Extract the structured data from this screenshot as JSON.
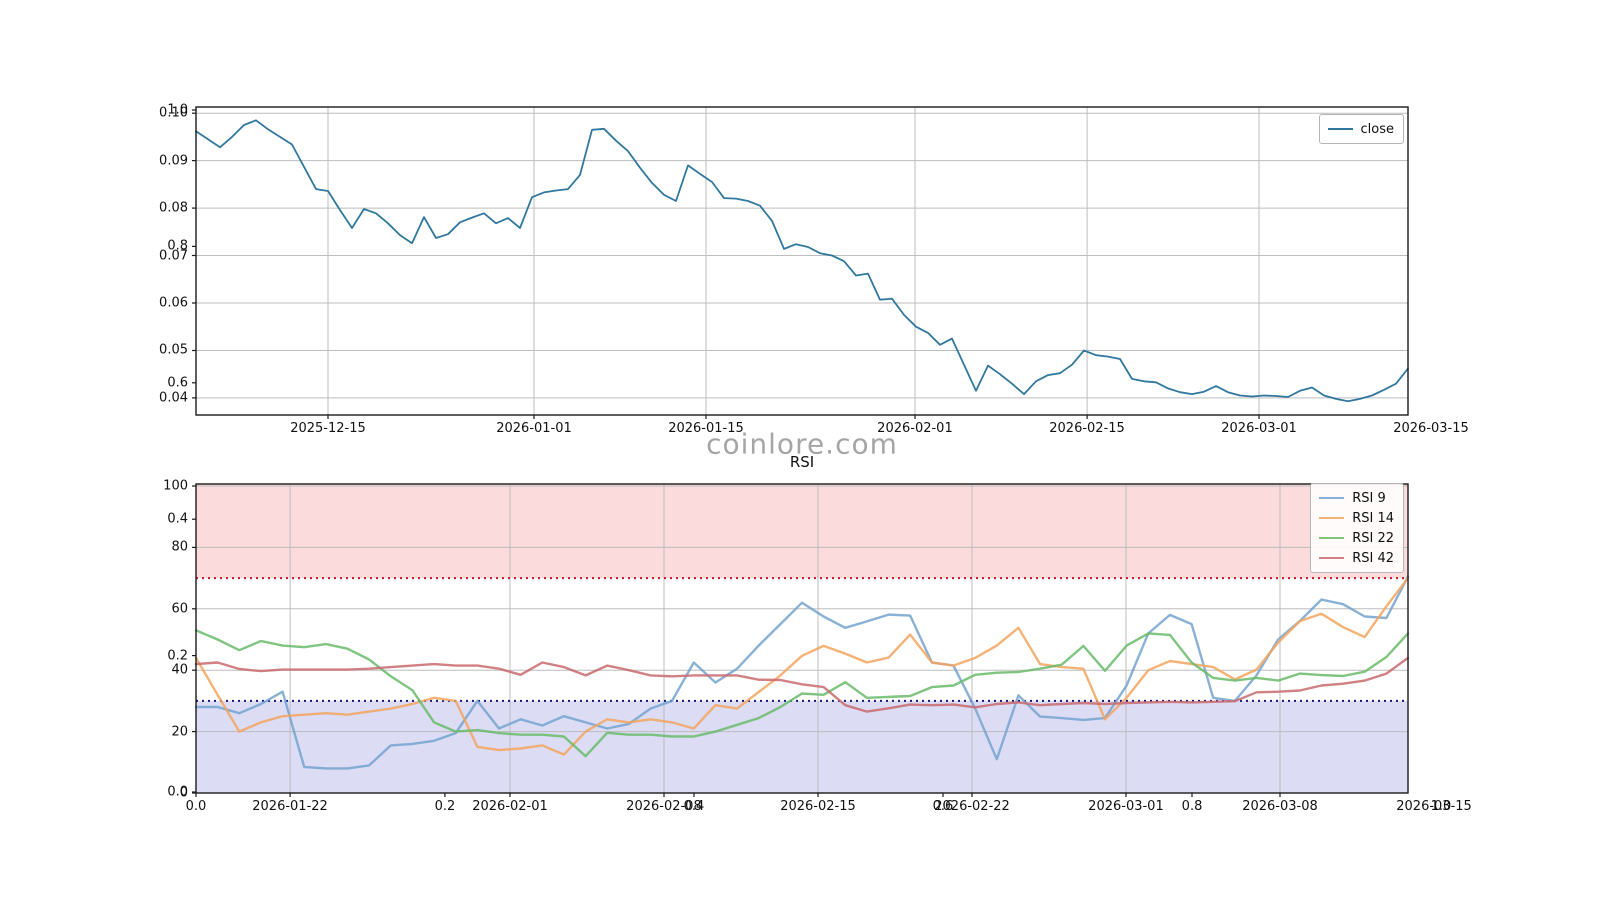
{
  "watermark": "coinlore.com",
  "colors": {
    "close_line": "#31789e",
    "rsi9": "#74a3ce",
    "rsi14": "#f3a45e",
    "rsi22": "#68bb6a",
    "rsi42": "#c96a6f",
    "overbought_band": "#fbdbdb",
    "oversold_band": "#dcdcf5",
    "overbought_line": "#cc1122",
    "oversold_line": "#131384",
    "grid": "#bdbdbd",
    "border": "#1a1a1a"
  },
  "overlay_axis": {
    "y_labels": [
      "1.0",
      "0.8",
      "0.6",
      "0.4",
      "0.2",
      "0.0"
    ],
    "x_labels": [
      "0.0",
      "0.2",
      "0.4",
      "0.6",
      "0.8",
      "1.0"
    ],
    "x_fracs": [
      0,
      0.2054,
      0.4109,
      0.6163,
      0.8218,
      1.0272
    ]
  },
  "chart_data": [
    {
      "type": "line",
      "title": "",
      "legend_position": "upper right",
      "grid": true,
      "ylim": [
        0.0364,
        0.1013
      ],
      "y_ticks": {
        "labels": [
          "0.04",
          "0.05",
          "0.06",
          "0.07",
          "0.08",
          "0.09",
          "0.10"
        ],
        "values": [
          0.04,
          0.05,
          0.06,
          0.07,
          0.08,
          0.09,
          0.1
        ]
      },
      "x_ticks": {
        "labels": [
          "2025-12-15",
          "2026-01-01",
          "2026-01-15",
          "2026-02-01",
          "2026-02-15",
          "2026-03-01",
          "2026-03-15"
        ],
        "fracs": [
          0.1089,
          0.2789,
          0.4208,
          0.5932,
          0.7352,
          0.8771,
          1.019
        ]
      },
      "x_range": [
        "2025-12-04",
        "2026-03-15"
      ],
      "series": [
        {
          "name": "close",
          "color": "#31789e",
          "width": 1.8,
          "opacity": 1,
          "values": [
            0.0962,
            0.0945,
            0.0928,
            0.095,
            0.0975,
            0.0985,
            0.0966,
            0.095,
            0.0934,
            0.0887,
            0.084,
            0.0836,
            0.0796,
            0.0758,
            0.0798,
            0.0789,
            0.0768,
            0.0743,
            0.0726,
            0.0781,
            0.0737,
            0.0745,
            0.077,
            0.078,
            0.0789,
            0.0768,
            0.0779,
            0.0758,
            0.0823,
            0.0833,
            0.0837,
            0.084,
            0.087,
            0.0965,
            0.0967,
            0.0942,
            0.092,
            0.0885,
            0.0853,
            0.0828,
            0.0815,
            0.089,
            0.0872,
            0.0855,
            0.0821,
            0.082,
            0.0815,
            0.0805,
            0.0773,
            0.0714,
            0.0724,
            0.0718,
            0.0705,
            0.07,
            0.0688,
            0.0658,
            0.0662,
            0.0607,
            0.0609,
            0.0575,
            0.055,
            0.0537,
            0.0512,
            0.0525,
            0.047,
            0.0415,
            0.0468,
            0.045,
            0.043,
            0.0408,
            0.0435,
            0.0448,
            0.0452,
            0.047,
            0.05,
            0.049,
            0.0487,
            0.0482,
            0.044,
            0.0435,
            0.0433,
            0.042,
            0.0412,
            0.0408,
            0.0413,
            0.0425,
            0.0412,
            0.0405,
            0.0403,
            0.0405,
            0.0404,
            0.0402,
            0.0415,
            0.0422,
            0.0405,
            0.0398,
            0.0393,
            0.0398,
            0.0405,
            0.0417,
            0.043,
            0.0462
          ]
        }
      ]
    },
    {
      "type": "line",
      "title": "RSI",
      "legend_position": "upper right",
      "grid": true,
      "ylim": [
        0,
        100.65
      ],
      "bands": [
        {
          "name": "overbought",
          "lo": 70,
          "hi": 100.65,
          "color": "#fbdbdb"
        },
        {
          "name": "oversold",
          "lo": 0,
          "hi": 30,
          "color": "#dcdcf5"
        }
      ],
      "dotted_lines": [
        {
          "name": "overbought-threshold",
          "value": 70,
          "color": "#cc1122"
        },
        {
          "name": "oversold-threshold",
          "value": 30,
          "color": "#131384"
        }
      ],
      "y_ticks": {
        "labels": [
          "0",
          "20",
          "40",
          "60",
          "80",
          "100"
        ],
        "values": [
          0,
          20,
          40,
          60,
          80,
          100
        ]
      },
      "x_ticks": {
        "labels": [
          "2026-01-22",
          "2026-02-01",
          "2026-02-08",
          "2026-02-15",
          "2026-02-22",
          "2026-03-01",
          "2026-03-08",
          "2026-03-15"
        ],
        "fracs": [
          0.0776,
          0.2591,
          0.3861,
          0.5132,
          0.6403,
          0.7673,
          0.8944,
          1.0215
        ]
      },
      "x_range": [
        "2026-01-18",
        "2026-03-15"
      ],
      "series": [
        {
          "name": "RSI 9",
          "color": "#74a3ce",
          "width": 2.4,
          "opacity": 0.85,
          "values": [
            28,
            28,
            26,
            29,
            33,
            8.5,
            8,
            8,
            9,
            15.5,
            16,
            17,
            19.5,
            30,
            21,
            24,
            22,
            25,
            23,
            21,
            22.5,
            27.5,
            30,
            42.5,
            36,
            40.5,
            48,
            55,
            62,
            57.5,
            53.8,
            55.9,
            58.1,
            57.8,
            42.5,
            41.5,
            27.6,
            11,
            31.8,
            24.9,
            24.4,
            23.8,
            24.4,
            35,
            52,
            58,
            55,
            31,
            30,
            38.3,
            50,
            56,
            63,
            61.5,
            57.5,
            57,
            70.5
          ]
        },
        {
          "name": "RSI 14",
          "color": "#f3a45e",
          "width": 2.4,
          "opacity": 0.85,
          "values": [
            44,
            32,
            20,
            23,
            25,
            25.5,
            26,
            25.5,
            26.5,
            27.5,
            29,
            31,
            30,
            15,
            14,
            14.5,
            15.5,
            12.5,
            20,
            24,
            23,
            24,
            23,
            21,
            28.6,
            27.5,
            32.9,
            38.3,
            44.7,
            47.9,
            45.4,
            42.5,
            44.1,
            51.6,
            42.5,
            41.5,
            44,
            48,
            53.8,
            42,
            41,
            40.5,
            24,
            31,
            40,
            43,
            42,
            41,
            37,
            40.2,
            49,
            56,
            58.4,
            54,
            50.8,
            60.8,
            70
          ]
        },
        {
          "name": "RSI 22",
          "color": "#68bb6a",
          "width": 2.4,
          "opacity": 0.85,
          "values": [
            53,
            50,
            46.5,
            49.5,
            48,
            47.5,
            48.5,
            47,
            43.5,
            38,
            33.5,
            23,
            20,
            20.5,
            19.5,
            19,
            19,
            18.4,
            12,
            19.6,
            19,
            19,
            18.4,
            18.4,
            20,
            22.2,
            24.4,
            28,
            32.4,
            32,
            36.1,
            31,
            31.3,
            31.6,
            34.5,
            35,
            38.5,
            39.2,
            39.4,
            40.5,
            41.8,
            47.9,
            39.8,
            48,
            52,
            51.5,
            42.5,
            37.5,
            36.6,
            37.5,
            36.6,
            38.9,
            38.4,
            38.1,
            39.5,
            44.3,
            52
          ]
        },
        {
          "name": "RSI 42",
          "color": "#c96a6f",
          "width": 2.4,
          "opacity": 0.85,
          "values": [
            42,
            42.5,
            40.4,
            39.7,
            40.2,
            40.2,
            40.2,
            40.2,
            40.5,
            41,
            41.5,
            42,
            41.5,
            41.5,
            40.5,
            38.5,
            42.5,
            41,
            38.3,
            41.5,
            40,
            38.3,
            38,
            38.3,
            38.3,
            38.3,
            36.9,
            36.8,
            35.4,
            34.5,
            28.6,
            26.5,
            27.6,
            28.8,
            28.6,
            28.8,
            27.9,
            29,
            29.5,
            28.6,
            29,
            29.3,
            29,
            29.3,
            29.5,
            29.7,
            29.5,
            29.7,
            29.9,
            32.8,
            33,
            33.4,
            35,
            35.6,
            36.6,
            38.9,
            44
          ]
        }
      ]
    }
  ]
}
